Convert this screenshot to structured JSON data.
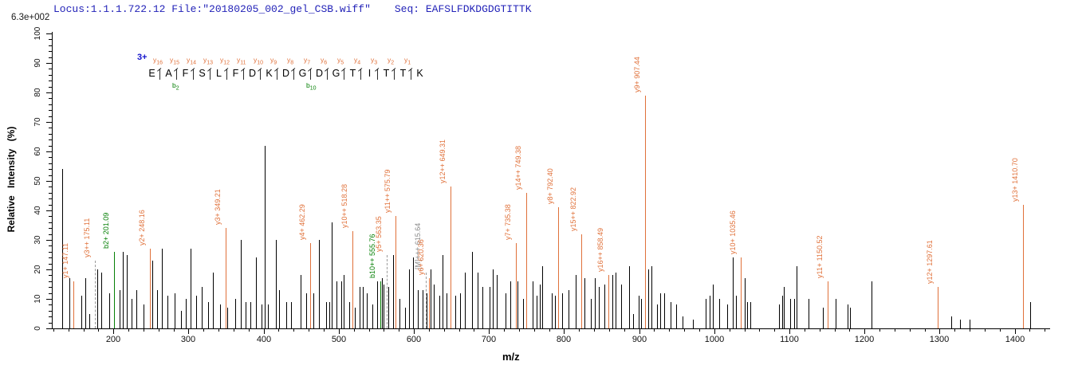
{
  "header": {
    "locus_file": "Locus:1.1.1.722.12 File:\"20180205_002_gel_CSB.wiff\"",
    "seq_text": "Seq: EAFSLFDKDGDGTITTK",
    "text_color": "#2323b8"
  },
  "peptide": {
    "charge_label": "3+",
    "charge_color": "#1414cc",
    "residues": [
      "E",
      "A",
      "F",
      "S",
      "L",
      "F",
      "D",
      "K",
      "D",
      "G",
      "D",
      "G",
      "T",
      "I",
      "T",
      "T",
      "K"
    ],
    "y_ions": [
      "y16",
      "y15",
      "y14",
      "y13",
      "y12",
      "y11",
      "y10",
      "y9",
      "y8",
      "y7",
      "y6",
      "y5",
      "y4",
      "y3",
      "y2",
      "y1"
    ],
    "b_ions": {
      "1": "b2",
      "9": "b10"
    }
  },
  "colors": {
    "y_ion": "#e0713a",
    "b_ion": "#068006",
    "precursor": "#8a8a8a",
    "peak": "#000000",
    "axis": "#000000"
  },
  "chart_data": {
    "type": "bar",
    "subtype": "ms2-centroid-spectrum",
    "title": "Locus:1.1.1.722.12 File:\"20180205_002_gel_CSB.wiff\" Seq: EAFSLFDKDGDGTITTK",
    "xlabel": "m/z",
    "ylabel": "Relative Intensity (%)",
    "max_intensity_label": "6.3e+002",
    "x_range": [
      118,
      1445
    ],
    "y_range": [
      0,
      100
    ],
    "x_major_tick_start": 200,
    "x_major_tick_end": 1400,
    "x_major_tick_step": 100,
    "x_minor_tick_step": 20,
    "y_major_tick_step": 10,
    "y_minor_tick_step": 2,
    "grid": false,
    "legend": false,
    "annotated_peaks": [
      {
        "label": "y1+ 147.11",
        "mz": 147.11,
        "pct": 16,
        "ion": "y",
        "dashed": false
      },
      {
        "label": "y3++ 175.11",
        "mz": 175.11,
        "pct": 23,
        "ion": "y",
        "dashed": true
      },
      {
        "label": "b2+ 201.09",
        "mz": 201.09,
        "pct": 26,
        "ion": "b",
        "dashed": false
      },
      {
        "label": "y2+ 248.16",
        "mz": 248.16,
        "pct": 27,
        "ion": "y",
        "dashed": false
      },
      {
        "label": "y3+ 349.21",
        "mz": 349.21,
        "pct": 34,
        "ion": "y",
        "dashed": false
      },
      {
        "label": "y4+ 462.29",
        "mz": 462.29,
        "pct": 29,
        "ion": "y",
        "dashed": false
      },
      {
        "label": "y10++ 518.28",
        "mz": 518.28,
        "pct": 33,
        "ion": "y",
        "dashed": false
      },
      {
        "label": "b10++ 555.76",
        "mz": 555.76,
        "pct": 16,
        "ion": "b",
        "dashed": false
      },
      {
        "label": "y5+ 563.35",
        "mz": 563.35,
        "pct": 25,
        "ion": "y",
        "dashed": true
      },
      {
        "label": "y11++ 575.79",
        "mz": 575.79,
        "pct": 38,
        "ion": "y",
        "dashed": false
      },
      {
        "label": "[M]+++ 615.64",
        "mz": 615.64,
        "pct": 19,
        "ion": "precursor",
        "dashed": true
      },
      {
        "label": "y6+ 620.36",
        "mz": 620.36,
        "pct": 17,
        "ion": "y",
        "dashed": false
      },
      {
        "label": "y12++ 649.31",
        "mz": 649.31,
        "pct": 48,
        "ion": "y",
        "dashed": false
      },
      {
        "label": "y7+ 735.38",
        "mz": 735.38,
        "pct": 29,
        "ion": "y",
        "dashed": false
      },
      {
        "label": "y14++ 749.38",
        "mz": 749.38,
        "pct": 46,
        "ion": "y",
        "dashed": false
      },
      {
        "label": "y8+ 792.40",
        "mz": 792.4,
        "pct": 41,
        "ion": "y",
        "dashed": false
      },
      {
        "label": "y15++ 822.92",
        "mz": 822.92,
        "pct": 32,
        "ion": "y",
        "dashed": false
      },
      {
        "label": "y16++ 858.49",
        "mz": 858.49,
        "pct": 18,
        "ion": "y",
        "dashed": false
      },
      {
        "label": "y9+ 907.44",
        "mz": 907.44,
        "pct": 79,
        "ion": "y",
        "dashed": false
      },
      {
        "label": "y10+ 1035.46",
        "mz": 1035.46,
        "pct": 24,
        "ion": "y",
        "dashed": false
      },
      {
        "label": "y11+ 1150.52",
        "mz": 1150.52,
        "pct": 16,
        "ion": "y",
        "dashed": false
      },
      {
        "label": "y12+ 1297.61",
        "mz": 1297.61,
        "pct": 14,
        "ion": "y",
        "dashed": false
      },
      {
        "label": "y13+ 1410.70",
        "mz": 1410.7,
        "pct": 42,
        "ion": "y",
        "dashed": false
      }
    ],
    "background_peaks": [
      [
        132,
        54
      ],
      [
        141,
        17
      ],
      [
        157,
        11
      ],
      [
        163,
        17
      ],
      [
        168,
        5
      ],
      [
        179,
        20
      ],
      [
        184,
        19
      ],
      [
        194,
        12
      ],
      [
        208,
        13
      ],
      [
        213,
        26
      ],
      [
        218,
        25
      ],
      [
        224,
        10
      ],
      [
        231,
        13
      ],
      [
        240,
        8
      ],
      [
        252,
        23
      ],
      [
        258,
        13
      ],
      [
        264,
        27
      ],
      [
        272,
        11
      ],
      [
        281,
        12
      ],
      [
        290,
        6
      ],
      [
        296,
        10
      ],
      [
        303,
        27
      ],
      [
        310,
        11
      ],
      [
        318,
        14
      ],
      [
        326,
        9
      ],
      [
        332,
        19
      ],
      [
        342,
        8
      ],
      [
        352,
        7
      ],
      [
        362,
        10
      ],
      [
        370,
        30
      ],
      [
        376,
        9
      ],
      [
        382,
        9
      ],
      [
        390,
        24
      ],
      [
        397,
        8
      ],
      [
        401,
        62
      ],
      [
        406,
        8
      ],
      [
        416,
        30
      ],
      [
        421,
        13
      ],
      [
        430,
        9
      ],
      [
        437,
        9
      ],
      [
        449,
        18
      ],
      [
        457,
        12
      ],
      [
        466,
        12
      ],
      [
        474,
        30
      ],
      [
        483,
        9
      ],
      [
        487,
        9
      ],
      [
        491,
        36
      ],
      [
        497,
        16
      ],
      [
        503,
        16
      ],
      [
        507,
        18
      ],
      [
        514,
        9
      ],
      [
        521,
        7
      ],
      [
        528,
        14
      ],
      [
        532,
        14
      ],
      [
        537,
        12
      ],
      [
        545,
        8
      ],
      [
        551,
        16
      ],
      [
        557,
        17
      ],
      [
        560,
        15
      ],
      [
        566,
        14
      ],
      [
        572,
        25
      ],
      [
        581,
        10
      ],
      [
        588,
        7
      ],
      [
        594,
        20
      ],
      [
        599,
        24
      ],
      [
        605,
        13
      ],
      [
        612,
        13
      ],
      [
        617,
        12
      ],
      [
        622,
        20
      ],
      [
        627,
        15
      ],
      [
        634,
        11
      ],
      [
        638,
        25
      ],
      [
        643,
        12
      ],
      [
        655,
        11
      ],
      [
        662,
        12
      ],
      [
        668,
        19
      ],
      [
        677,
        26
      ],
      [
        685,
        19
      ],
      [
        691,
        14
      ],
      [
        701,
        14
      ],
      [
        705,
        20
      ],
      [
        710,
        18
      ],
      [
        722,
        12
      ],
      [
        728,
        16
      ],
      [
        738,
        16
      ],
      [
        745,
        10
      ],
      [
        758,
        16
      ],
      [
        763,
        11
      ],
      [
        768,
        15
      ],
      [
        771,
        21
      ],
      [
        784,
        12
      ],
      [
        788,
        11
      ],
      [
        797,
        12
      ],
      [
        806,
        13
      ],
      [
        815,
        18
      ],
      [
        827,
        17
      ],
      [
        836,
        10
      ],
      [
        841,
        17
      ],
      [
        846,
        14
      ],
      [
        854,
        15
      ],
      [
        864,
        18
      ],
      [
        869,
        19
      ],
      [
        876,
        15
      ],
      [
        887,
        21
      ],
      [
        892,
        5
      ],
      [
        899,
        11
      ],
      [
        903,
        10
      ],
      [
        908,
        12
      ],
      [
        912,
        20
      ],
      [
        916,
        21
      ],
      [
        924,
        8
      ],
      [
        928,
        12
      ],
      [
        933,
        12
      ],
      [
        942,
        9
      ],
      [
        949,
        8
      ],
      [
        958,
        4
      ],
      [
        971,
        3
      ],
      [
        988,
        10
      ],
      [
        994,
        11
      ],
      [
        998,
        15
      ],
      [
        1007,
        10
      ],
      [
        1017,
        8
      ],
      [
        1025,
        24
      ],
      [
        1029,
        11
      ],
      [
        1040,
        17
      ],
      [
        1044,
        9
      ],
      [
        1048,
        9
      ],
      [
        1086,
        8
      ],
      [
        1090,
        11
      ],
      [
        1093,
        14
      ],
      [
        1101,
        10
      ],
      [
        1106,
        10
      ],
      [
        1110,
        21
      ],
      [
        1125,
        10
      ],
      [
        1145,
        7
      ],
      [
        1162,
        10
      ],
      [
        1177,
        8
      ],
      [
        1181,
        7
      ],
      [
        1209,
        16
      ],
      [
        1316,
        4
      ],
      [
        1327,
        3
      ],
      [
        1340,
        3
      ],
      [
        1421,
        9
      ]
    ]
  }
}
